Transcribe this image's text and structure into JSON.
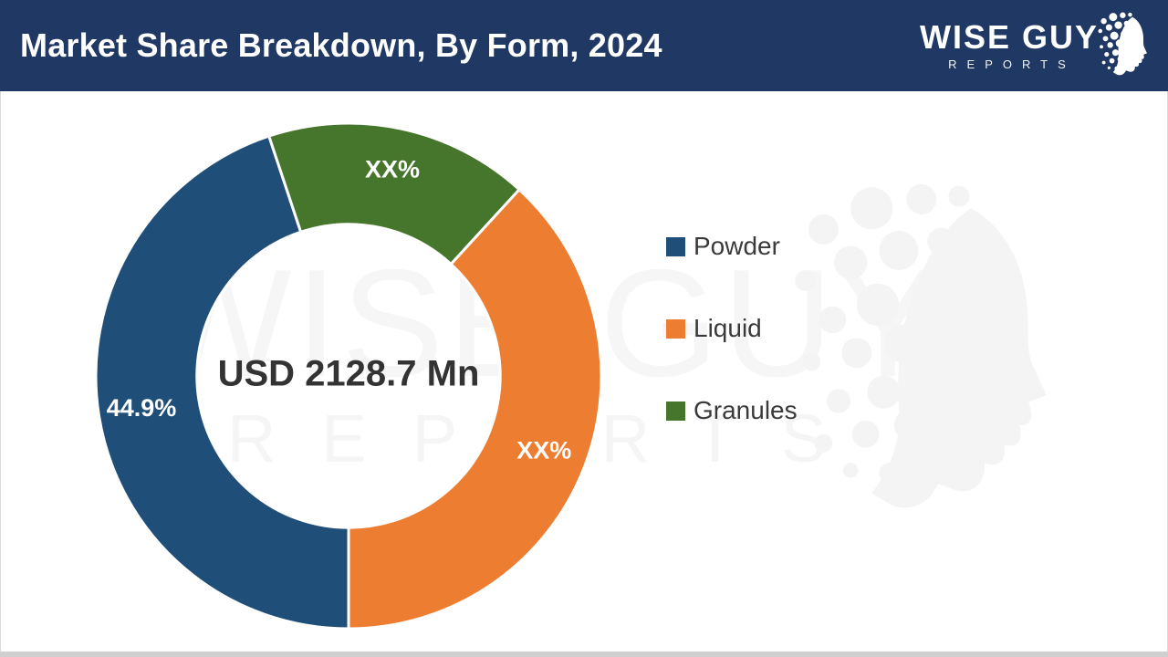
{
  "header": {
    "title": "Market Share Breakdown, By Form, 2024",
    "logo": {
      "line1": "WISE GUY",
      "line2": "REPORTS"
    }
  },
  "watermark": {
    "line1": "WISE GUY",
    "line2": "REPORTS"
  },
  "chart_data": {
    "type": "donut",
    "title": "Market Share Breakdown, By Form, 2024",
    "center_label": "USD 2128.7 Mn",
    "start_angle_deg": 180,
    "clockwise": true,
    "inner_radius_ratio": 0.6,
    "label_color": "#ffffff",
    "separator_color": "#ffffff",
    "segments": [
      {
        "name": "Powder",
        "label": "44.9%",
        "value_pct": 44.9,
        "color": "#1F4E79"
      },
      {
        "name": "Granules",
        "label": "XX%",
        "value_pct": 16.9,
        "color": "#45762B"
      },
      {
        "name": "Liquid",
        "label": "XX%",
        "value_pct": 38.2,
        "color": "#ED7D31"
      }
    ],
    "legend": {
      "position": "right",
      "items": [
        {
          "label": "Powder",
          "color": "#1F4E79"
        },
        {
          "label": "Liquid",
          "color": "#ED7D31"
        },
        {
          "label": "Granules",
          "color": "#45762B"
        }
      ]
    }
  },
  "colors": {
    "header_bg": "#1F3864",
    "footer_strip": "#cfcfcf",
    "center_text": "#333333",
    "watermark": "#f5f5f5"
  }
}
